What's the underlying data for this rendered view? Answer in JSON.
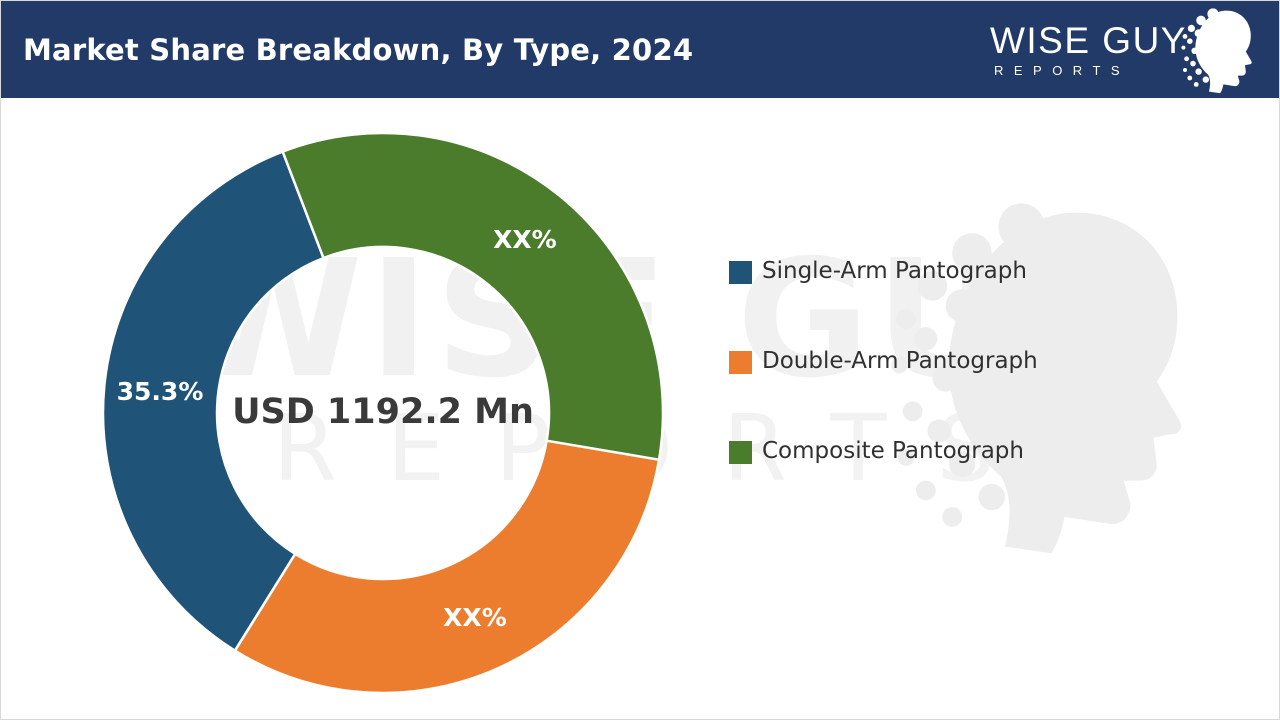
{
  "header": {
    "title": "Market Share Breakdown, By Type, 2024",
    "logo": {
      "wordmark": "WISE GUY",
      "subtext": "REPORTS"
    }
  },
  "watermark": {
    "line1": "WISE GUY",
    "line2": "REPORTS"
  },
  "chart_data": {
    "type": "pie",
    "subtype": "donut",
    "title": "Market Share Breakdown, By Type, 2024",
    "center_label": "USD 1192.2 Mn",
    "start_angle_deg": 111,
    "direction": "counterclockwise",
    "inner_radius_ratio": 0.59,
    "categories": [
      "Single-Arm Pantograph",
      "Double-Arm Pantograph",
      "Composite Pantograph"
    ],
    "values_pct": [
      35.3,
      31.2,
      33.5
    ],
    "slice_labels": [
      "35.3%",
      "XX%",
      "XX%"
    ],
    "colors": [
      "#1F5378",
      "#ED7D2E",
      "#4A7C2B"
    ],
    "legend_position": "right"
  },
  "legend": {
    "items": [
      {
        "label": "Single-Arm Pantograph",
        "color": "#1F5378"
      },
      {
        "label": "Double-Arm Pantograph",
        "color": "#ED7D2E"
      },
      {
        "label": "Composite Pantograph",
        "color": "#4A7C2B"
      }
    ]
  },
  "colors": {
    "header_bg": "#223A67",
    "title_text": "#FFFFFF",
    "center_text": "#3A3A3A",
    "legend_text": "#303030",
    "slice_label_text": "#FFFFFF",
    "watermark": "#F1F1F1",
    "page_border": "#D8D8D8"
  }
}
